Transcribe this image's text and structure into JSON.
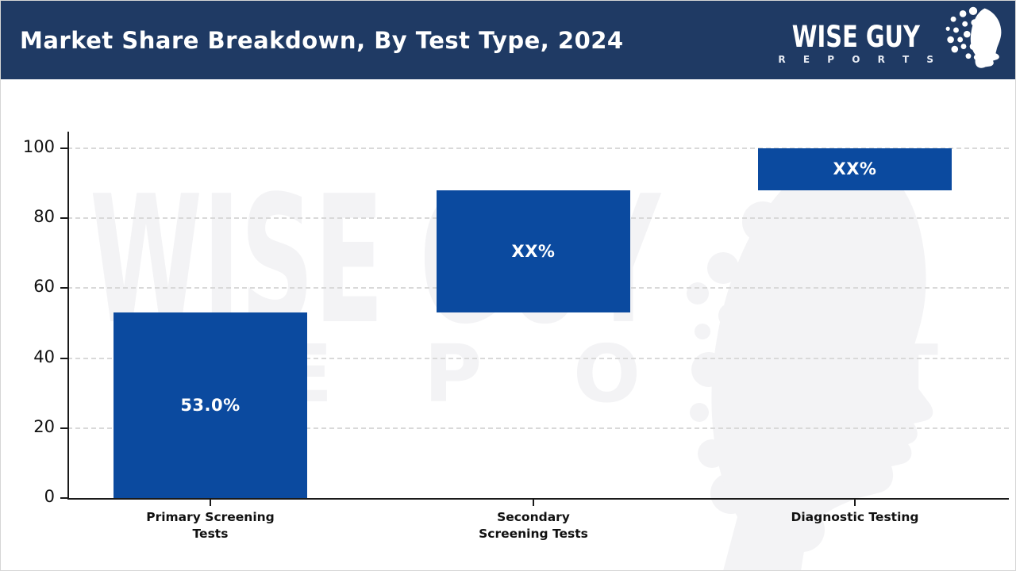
{
  "header": {
    "title": "Market Share Breakdown, By Test Type, 2024",
    "logo_line1": "WISE GUY",
    "logo_line2": "R E P O R T S"
  },
  "watermark": {
    "line1": "WISE GUY",
    "line2": "R E P O R T S"
  },
  "chart_data": {
    "type": "bar",
    "subtype": "floating-waterfall",
    "title": "Market Share Breakdown, By Test Type, 2024",
    "categories": [
      "Primary Screening Tests",
      "Secondary Screening Tests",
      "Diagnostic Testing"
    ],
    "category_display": [
      "Primary Screening\nTests",
      "Secondary\nScreening Tests",
      "Diagnostic Testing"
    ],
    "bars": [
      {
        "category": "Primary Screening Tests",
        "from": 0,
        "to": 53,
        "label": "53.0%"
      },
      {
        "category": "Secondary Screening Tests",
        "from": 53,
        "to": 88,
        "label": "XX%"
      },
      {
        "category": "Diagnostic Testing",
        "from": 88,
        "to": 100,
        "label": "XX%"
      }
    ],
    "yticks": [
      0,
      20,
      40,
      60,
      80,
      100
    ],
    "ylim": [
      0,
      105
    ],
    "xlabel": "",
    "ylabel": "",
    "grid": "dashed-horizontal",
    "legend": "none"
  },
  "colors": {
    "header_bg": "#1f3a64",
    "bar_blue": "#0b4a9f",
    "watermark_gray": "#f3f3f5",
    "grid_gray": "#d9d9d9",
    "axis_black": "#1a1a1a",
    "page_border": "#d6d6d6"
  }
}
